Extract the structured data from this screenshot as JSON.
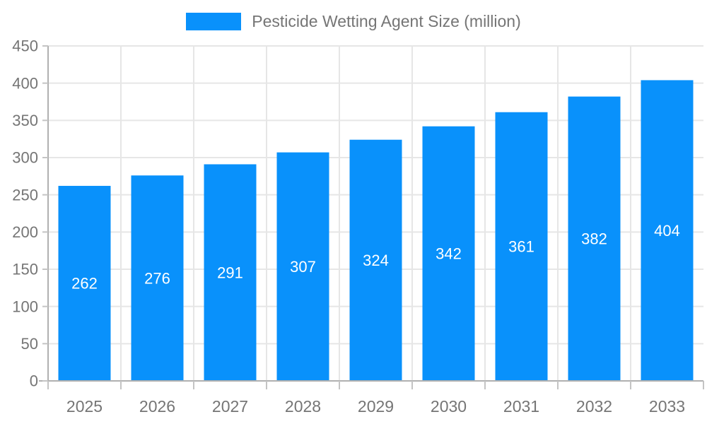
{
  "chart_data": {
    "type": "bar",
    "title": "Pesticide Wetting Agent Size (million)",
    "categories": [
      "2025",
      "2026",
      "2027",
      "2028",
      "2029",
      "2030",
      "2031",
      "2032",
      "2033"
    ],
    "values": [
      262,
      276,
      291,
      307,
      324,
      342,
      361,
      382,
      404
    ],
    "xlabel": "",
    "ylabel": "",
    "ylim": [
      0,
      450
    ],
    "yticks": [
      0,
      50,
      100,
      150,
      200,
      250,
      300,
      350,
      400,
      450
    ],
    "grid": true,
    "legend_position": "top-center",
    "colors": {
      "bar": "#0991fb",
      "bar_value_label": "#ffffff",
      "axis_text": "#757575",
      "grid_line": "#e6e6e6",
      "axis_line": "#b0b0b0",
      "tick_line": "#c4c4c4"
    }
  }
}
